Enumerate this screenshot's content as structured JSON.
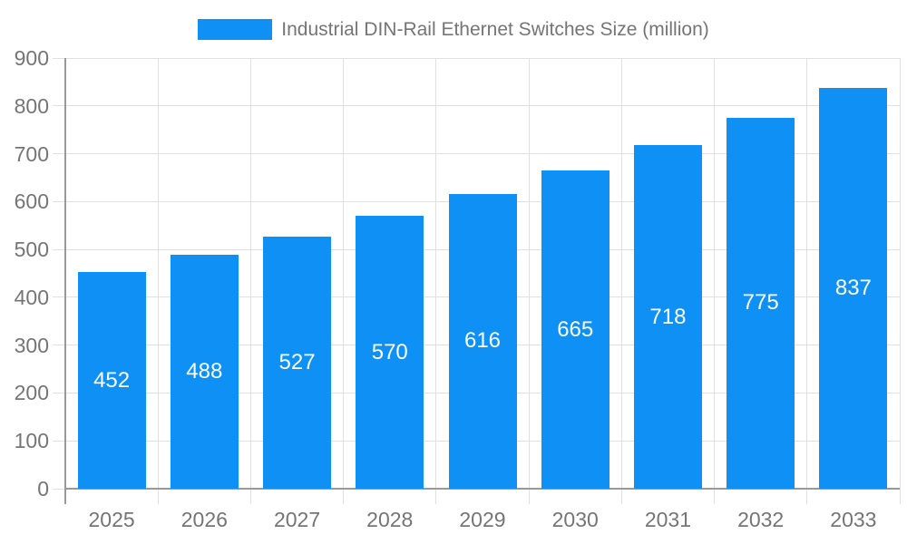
{
  "chart_data": {
    "type": "bar",
    "title": "Industrial DIN-Rail Ethernet Switches Size (million)",
    "legend": {
      "label": "Industrial DIN-Rail Ethernet Switches Size (million)",
      "position": "top"
    },
    "categories": [
      "2025",
      "2026",
      "2027",
      "2028",
      "2029",
      "2030",
      "2031",
      "2032",
      "2033"
    ],
    "series": [
      {
        "name": "Industrial DIN-Rail Ethernet Switches Size (million)",
        "values": [
          452,
          488,
          527,
          570,
          616,
          665,
          718,
          775,
          837
        ]
      }
    ],
    "xlabel": "",
    "ylabel": "",
    "ylim": [
      0,
      900
    ],
    "y_interval": 100,
    "grid": true,
    "bar_value_labels_inside": true,
    "colors": {
      "bar": "#0E90F5",
      "grid": "#E0E0E0",
      "axis": "#999999",
      "tick_text": "#757575",
      "legend_text": "#757575",
      "bar_label_text": "#FFFFFF",
      "background": "#FFFFFF"
    }
  }
}
